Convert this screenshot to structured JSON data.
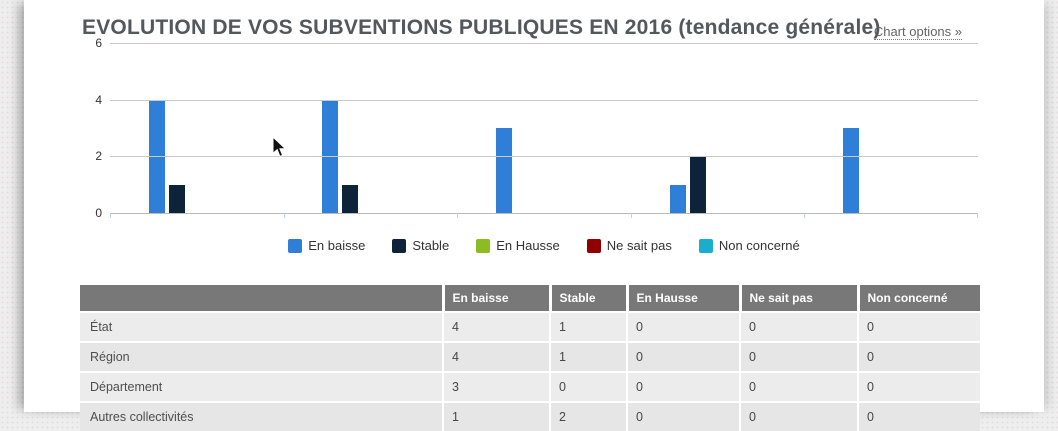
{
  "page": {
    "title": "EVOLUTION DE VOS SUBVENTIONS PUBLIQUES EN 2016 (tendance générale)",
    "chart_options_label": "Chart options »"
  },
  "colors": {
    "grid": "#c9c9c9",
    "axis_tick": "#c0d0e0",
    "table_header_bg": "#787878",
    "series_palette": [
      "#2f7ed8",
      "#0d233a",
      "#8bbc21",
      "#910000",
      "#1aadce"
    ]
  },
  "chart_data": {
    "type": "bar",
    "title": "EVOLUTION DE VOS SUBVENTIONS PUBLIQUES EN 2016 (tendance générale)",
    "categories": [
      "État",
      "Région",
      "Département",
      "Autres collectivités",
      ""
    ],
    "series": [
      {
        "name": "En baisse",
        "color": "#2f7ed8",
        "values": [
          4,
          4,
          3,
          1,
          3
        ]
      },
      {
        "name": "Stable",
        "color": "#0d233a",
        "values": [
          1,
          1,
          0,
          2,
          0
        ]
      },
      {
        "name": "En Hausse",
        "color": "#8bbc21",
        "values": [
          0,
          0,
          0,
          0,
          0
        ]
      },
      {
        "name": "Ne sait pas",
        "color": "#910000",
        "values": [
          0,
          0,
          0,
          0,
          0
        ]
      },
      {
        "name": "Non concerné",
        "color": "#1aadce",
        "values": [
          0,
          0,
          0,
          0,
          0
        ]
      }
    ],
    "xlabel": "",
    "ylabel": "",
    "ylim": [
      0,
      6
    ],
    "yticks": [
      0,
      2,
      4,
      6
    ],
    "grid": true,
    "legend_position": "bottom",
    "x_axis_labels_visible": false
  },
  "table": {
    "headers": [
      "",
      "En baisse",
      "Stable",
      "En Hausse",
      "Ne sait pas",
      "Non concerné"
    ],
    "rows": [
      {
        "label": "État",
        "values": [
          "4",
          "1",
          "0",
          "0",
          "0"
        ]
      },
      {
        "label": "Région",
        "values": [
          "4",
          "1",
          "0",
          "0",
          "0"
        ]
      },
      {
        "label": "Département",
        "values": [
          "3",
          "0",
          "0",
          "0",
          "0"
        ]
      },
      {
        "label": "Autres collectivités",
        "values": [
          "1",
          "2",
          "0",
          "0",
          "0"
        ]
      }
    ]
  }
}
